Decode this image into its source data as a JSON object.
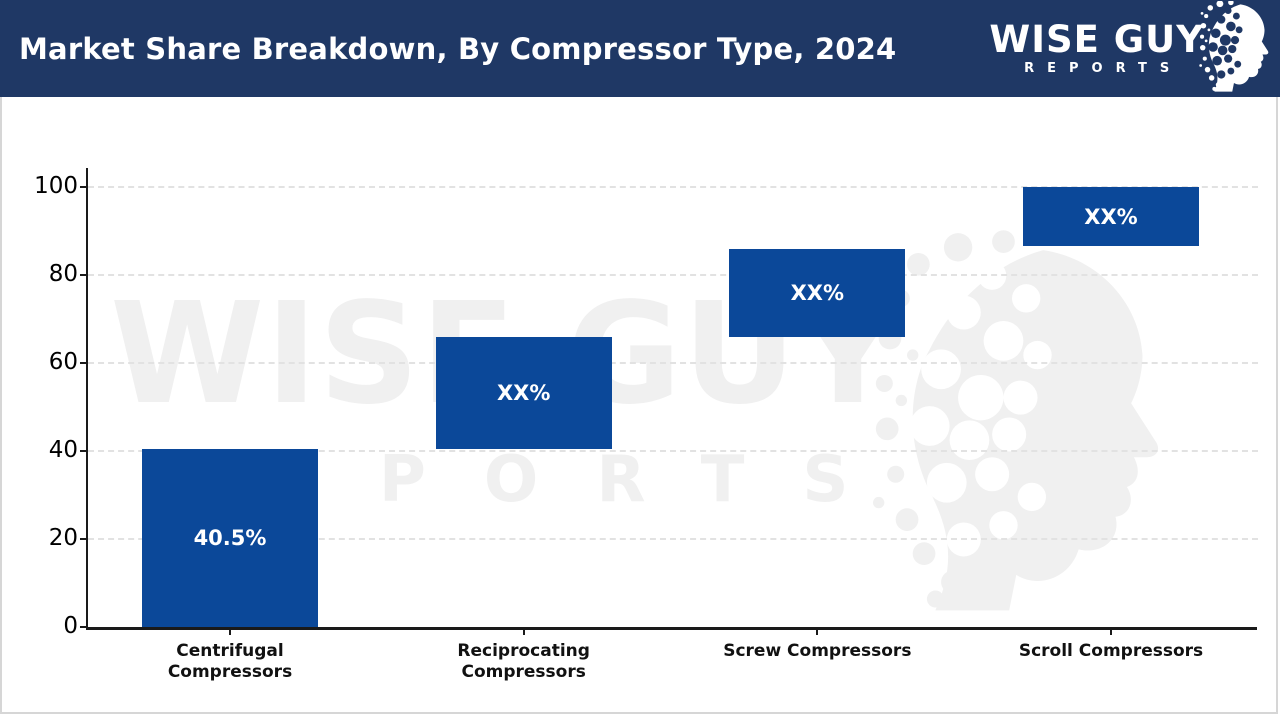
{
  "header": {
    "title": "Market Share Breakdown, By Compressor Type, 2024",
    "logo": {
      "name": "WISE GUY",
      "tagline": "REPORTS"
    },
    "colors": {
      "background": "#1f3865",
      "text": "#ffffff"
    }
  },
  "watermark": {
    "line1": "WISE GUY",
    "line2": "REPORTS",
    "color": "#f0f0f0"
  },
  "chart_data": {
    "type": "bar",
    "subtype": "waterfall",
    "title": "Market Share Breakdown, By Compressor Type, 2024",
    "xlabel": "",
    "ylabel": "",
    "ylim": [
      0,
      104
    ],
    "y_ticks": [
      0,
      20,
      40,
      60,
      80,
      100
    ],
    "grid": "horizontal-dashed",
    "legend": "none",
    "bar_color": "#0b4899",
    "bar_label_color": "#ffffff",
    "axis_color": "#1a1a1a",
    "grid_color": "#e2e2e2",
    "categories": [
      "Centrifugal Compressors",
      "Reciprocating Compressors",
      "Screw Compressors",
      "Scroll Compressors"
    ],
    "category_label_lines": [
      [
        "Centrifugal",
        "Compressors"
      ],
      [
        "Reciprocating",
        "Compressors"
      ],
      [
        "Screw Compressors"
      ],
      [
        "Scroll Compressors"
      ]
    ],
    "bars": [
      {
        "category": "Centrifugal Compressors",
        "value_label": "40.5%",
        "start": 0,
        "end": 40.5
      },
      {
        "category": "Reciprocating Compressors",
        "value_label": "XX%",
        "start": 40.5,
        "end": 66
      },
      {
        "category": "Screw Compressors",
        "value_label": "XX%",
        "start": 66,
        "end": 86
      },
      {
        "category": "Scroll Compressors",
        "value_label": "XX%",
        "start": 86.5,
        "end": 100
      }
    ]
  }
}
